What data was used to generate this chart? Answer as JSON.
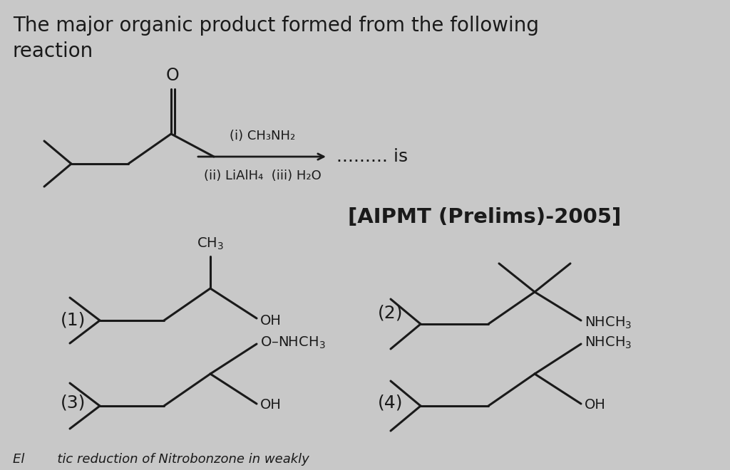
{
  "bg_color": "#c8c8c8",
  "title_line1": "The major organic product formed from the following",
  "title_line2": "reaction",
  "reagent_line1": "(i) CH₃NH₂",
  "reagent_line2": "(ii) LiAlH₄  (iii) H₂O",
  "dots": "......... is",
  "citation": "[AIPMT (Prelims)-2005]",
  "option1_label": "(1)",
  "option2_label": "(2)",
  "option3_label": "(3)",
  "option4_label": "(4)",
  "text_color": "#1a1a1a",
  "line_color": "#1a1a1a",
  "font_size_title": 19,
  "font_size_label": 17
}
